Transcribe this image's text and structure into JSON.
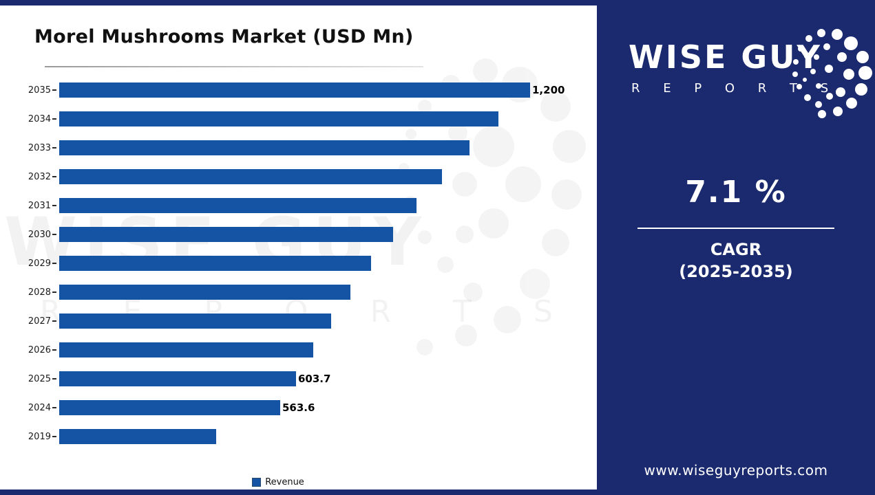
{
  "title": "Morel Mushrooms Market (USD Mn)",
  "chart_data": {
    "type": "bar",
    "orientation": "horizontal",
    "title": "Morel Mushrooms Market (USD Mn)",
    "xlabel": "",
    "ylabel": "",
    "xlim": [
      0,
      1260
    ],
    "grid": false,
    "legend_position": "bottom",
    "legend_label": "Revenue",
    "categories": [
      "2035",
      "2034",
      "2033",
      "2032",
      "2031",
      "2030",
      "2029",
      "2028",
      "2027",
      "2026",
      "2025",
      "2024",
      "2019"
    ],
    "values": [
      1200,
      1119.3,
      1045.1,
      975.8,
      911.1,
      850.7,
      794.3,
      741.7,
      692.5,
      646.6,
      603.7,
      563.6,
      400
    ],
    "points": [
      {
        "year": "2035",
        "value": 1200,
        "label": "1,200"
      },
      {
        "year": "2034",
        "value": 1119.3,
        "label": ""
      },
      {
        "year": "2033",
        "value": 1045.1,
        "label": ""
      },
      {
        "year": "2032",
        "value": 975.8,
        "label": ""
      },
      {
        "year": "2031",
        "value": 911.1,
        "label": ""
      },
      {
        "year": "2030",
        "value": 850.7,
        "label": ""
      },
      {
        "year": "2029",
        "value": 794.3,
        "label": ""
      },
      {
        "year": "2028",
        "value": 741.7,
        "label": ""
      },
      {
        "year": "2027",
        "value": 692.5,
        "label": ""
      },
      {
        "year": "2026",
        "value": 646.6,
        "label": ""
      },
      {
        "year": "2025",
        "value": 603.7,
        "label": "603.7"
      },
      {
        "year": "2024",
        "value": 563.6,
        "label": "563.6"
      },
      {
        "year": "2019",
        "value": 400,
        "label": ""
      }
    ]
  },
  "watermark": {
    "line1": "WISE GUY",
    "line2": "R E P O R T S"
  },
  "sidebar": {
    "logo_line1": "WISE GUY",
    "logo_line2": "R E P O R T S",
    "cagr_value": "7.1 %",
    "cagr_label": "CAGR",
    "cagr_period": "(2025-2035)",
    "website": "www.wiseguyreports.com"
  },
  "colors": {
    "bar": "#1553a5",
    "panel": "#1b2a6f",
    "watermark": "rgba(0,0,0,0.05)",
    "title_text": "#111111"
  }
}
